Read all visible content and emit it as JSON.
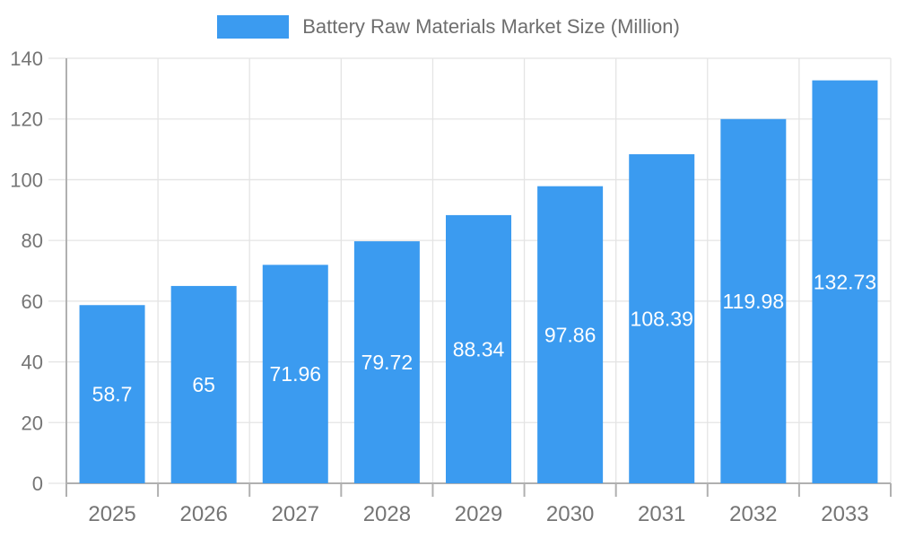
{
  "legend": {
    "label": "Battery Raw Materials Market Size (Million)"
  },
  "chart_data": {
    "type": "bar",
    "title": "Battery Raw Materials Market Size (Million)",
    "categories": [
      "2025",
      "2026",
      "2027",
      "2028",
      "2029",
      "2030",
      "2031",
      "2032",
      "2033"
    ],
    "values": [
      58.7,
      65,
      71.96,
      79.72,
      88.34,
      97.86,
      108.39,
      119.98,
      132.73
    ],
    "value_labels": [
      "58.7",
      "65",
      "71.96",
      "79.72",
      "88.34",
      "97.86",
      "108.39",
      "119.98",
      "132.73"
    ],
    "xlabel": "",
    "ylabel": "",
    "ylim": [
      0,
      140
    ],
    "yticks": [
      0,
      20,
      40,
      60,
      80,
      100,
      120,
      140
    ],
    "grid": true,
    "legend_position": "top",
    "value_label_position": "inside-center",
    "colors": {
      "bar": "#3b9bf0",
      "axis": "#b0b0b0",
      "grid": "#e4e4e4",
      "tick_text": "#757575",
      "title_text": "#6e6e6e",
      "value_text": "#ffffff"
    }
  }
}
